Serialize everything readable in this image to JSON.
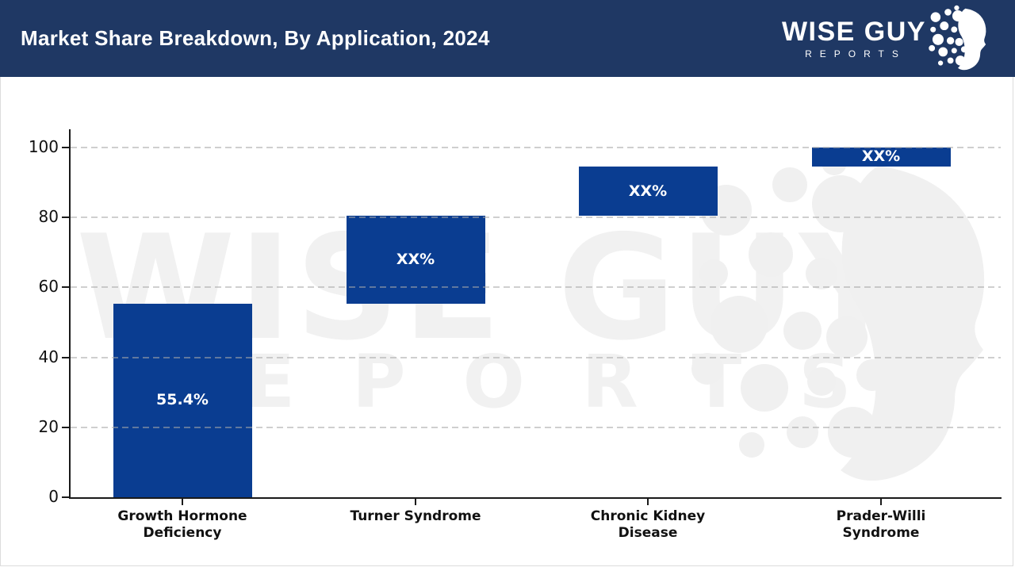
{
  "header": {
    "title": "Market Share Breakdown, By Application, 2024",
    "logo": {
      "line1": "WISE GUY",
      "line2": "REPORTS"
    }
  },
  "watermark": {
    "line1": "WISE GUY",
    "line2": "REPORTS"
  },
  "chart_data": {
    "type": "bar",
    "subtype": "waterfall",
    "title": "Market Share Breakdown, By Application, 2024",
    "categories": [
      "Growth Hormone\nDeficiency",
      "Turner Syndrome",
      "Chronic Kidney\nDisease",
      "Prader-Willi\nSyndrome"
    ],
    "bars": [
      {
        "category": "Growth Hormone Deficiency",
        "start": 0,
        "end": 55.4,
        "label": "55.4%"
      },
      {
        "category": "Turner Syndrome",
        "start": 55.4,
        "end": 80.4,
        "label": "XX%"
      },
      {
        "category": "Chronic Kidney Disease",
        "start": 80.4,
        "end": 94.6,
        "label": "XX%"
      },
      {
        "category": "Prader-Willi Syndrome",
        "start": 94.6,
        "end": 100,
        "label": "XX%"
      }
    ],
    "yticks": [
      0,
      20,
      40,
      60,
      80,
      100
    ],
    "ylim": [
      0,
      100
    ],
    "xlabel": "",
    "ylabel": "",
    "legend": "none",
    "grid": "horizontal-dashed-over-bars"
  },
  "colors": {
    "header_bg": "#1f3864",
    "bar": "#0a3d91",
    "axis": "#1a1a1a",
    "grid": "#d8d8d8",
    "watermark": "#f1f1f1",
    "value_label": "#ffffff"
  }
}
